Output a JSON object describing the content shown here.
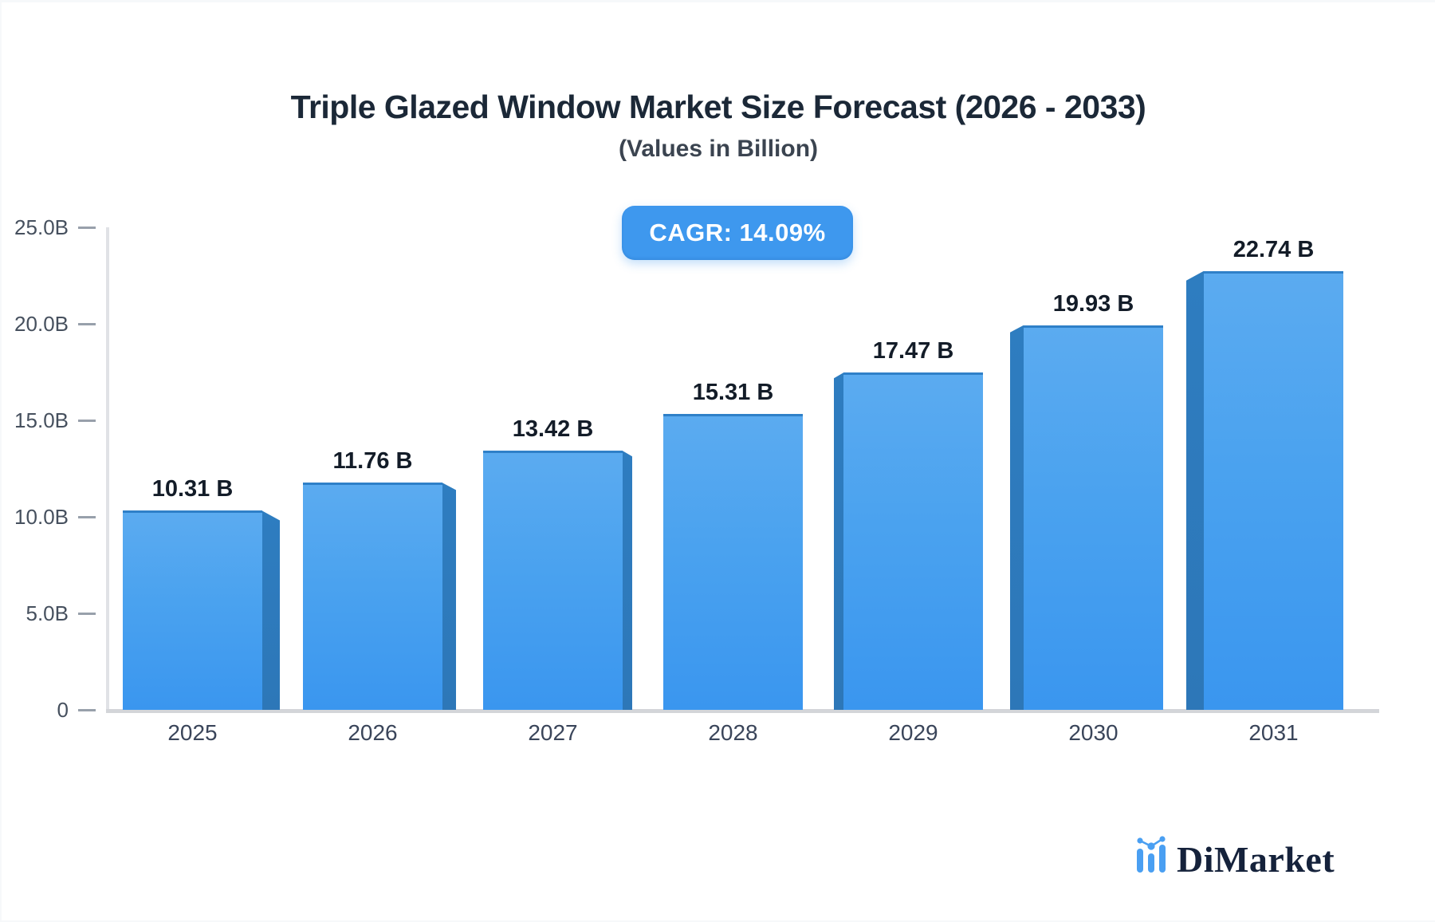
{
  "title": "Triple Glazed Window Market Size Forecast (2026 - 2033)",
  "subtitle": "(Values in Billion)",
  "badge": {
    "label": "CAGR: 14.09%"
  },
  "chart_data": {
    "type": "bar",
    "title": "Triple Glazed Window Market Size Forecast (2026 - 2033)",
    "subtitle": "(Values in Billion)",
    "cagr": "14.09%",
    "categories": [
      "2025",
      "2026",
      "2027",
      "2028",
      "2029",
      "2030",
      "2031"
    ],
    "values": [
      10.31,
      11.76,
      13.42,
      15.31,
      17.47,
      19.93,
      22.74
    ],
    "bar_labels": [
      "10.31 B",
      "11.76 B",
      "13.42 B",
      "15.31 B",
      "17.47 B",
      "19.93 B",
      "22.74 B"
    ],
    "xlabel": "",
    "ylabel": "",
    "ylim": [
      0,
      25
    ],
    "yticks": [
      {
        "value": 25,
        "label": "25.0B"
      },
      {
        "value": 20,
        "label": "20.0B"
      },
      {
        "value": 15,
        "label": "15.0B"
      },
      {
        "value": 10,
        "label": "10.0B"
      },
      {
        "value": 5,
        "label": "5.0B"
      },
      {
        "value": 0,
        "label": "0"
      }
    ],
    "grid": false,
    "legend": false,
    "bar_style": "3d",
    "colors": {
      "bar_top": "#5babf0",
      "bar_bottom": "#3a96ef",
      "bar_side": "#2d77b8",
      "badge_bg": "#3e98ee",
      "badge_text": "#ffffff",
      "axis_line": "#d3d5d9",
      "tick_mark": "#98a0ab",
      "title_text": "#1b2837",
      "label_text": "#131c28"
    }
  },
  "logo": {
    "icon": "bar-chart-trend-icon",
    "text": "DiMarket"
  }
}
